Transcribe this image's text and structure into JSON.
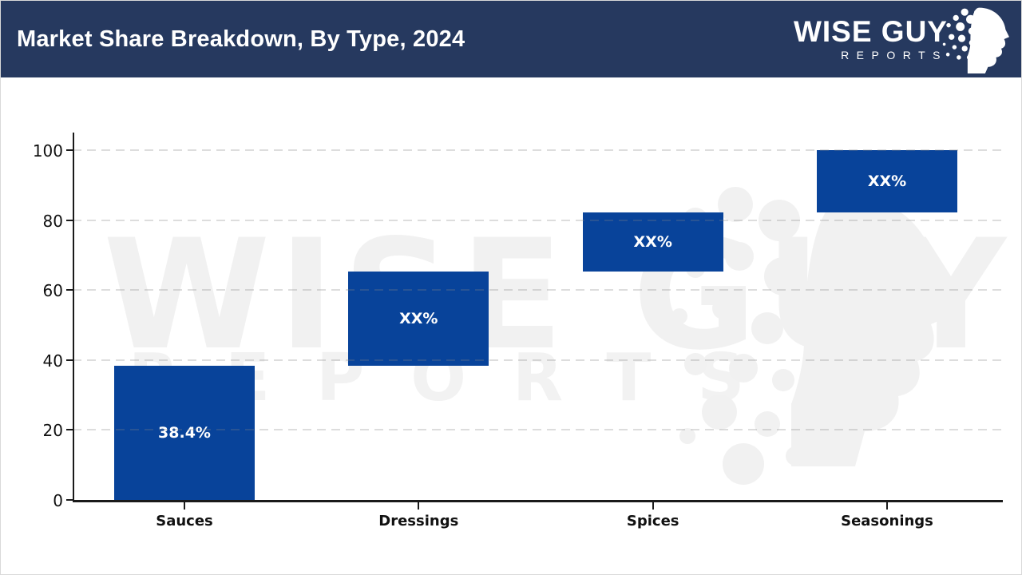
{
  "header": {
    "title": "Market Share Breakdown, By Type, 2024",
    "logo": {
      "line1": "WISE GUY",
      "line2": "REPORTS"
    },
    "bg_color": "#26395f"
  },
  "watermark": {
    "line1": "WISE GUY",
    "line2": "REPORTS"
  },
  "chart_data": {
    "type": "bar",
    "subtype": "waterfall",
    "title": "Market Share Breakdown, By Type, 2024",
    "categories": [
      "Sauces",
      "Dressings",
      "Spices",
      "Seasonings"
    ],
    "segments": [
      {
        "category": "Sauces",
        "start": 0,
        "end": 38.4,
        "label": "38.4%"
      },
      {
        "category": "Dressings",
        "start": 38.4,
        "end": 65.3,
        "label": "XX%"
      },
      {
        "category": "Spices",
        "start": 65.3,
        "end": 82.2,
        "label": "XX%"
      },
      {
        "category": "Seasonings",
        "start": 82.2,
        "end": 100,
        "label": "XX%"
      }
    ],
    "xlabel": "",
    "ylabel": "",
    "yticks": [
      0,
      20,
      40,
      60,
      80,
      100
    ],
    "ylim": [
      0,
      105
    ],
    "grid": "dashed-horizontal",
    "legend": "none",
    "bar_color": "#08439a",
    "bar_label_color": "#ffffff",
    "axis_color": "#1a1a1a",
    "tick_label_color": "#111111"
  }
}
